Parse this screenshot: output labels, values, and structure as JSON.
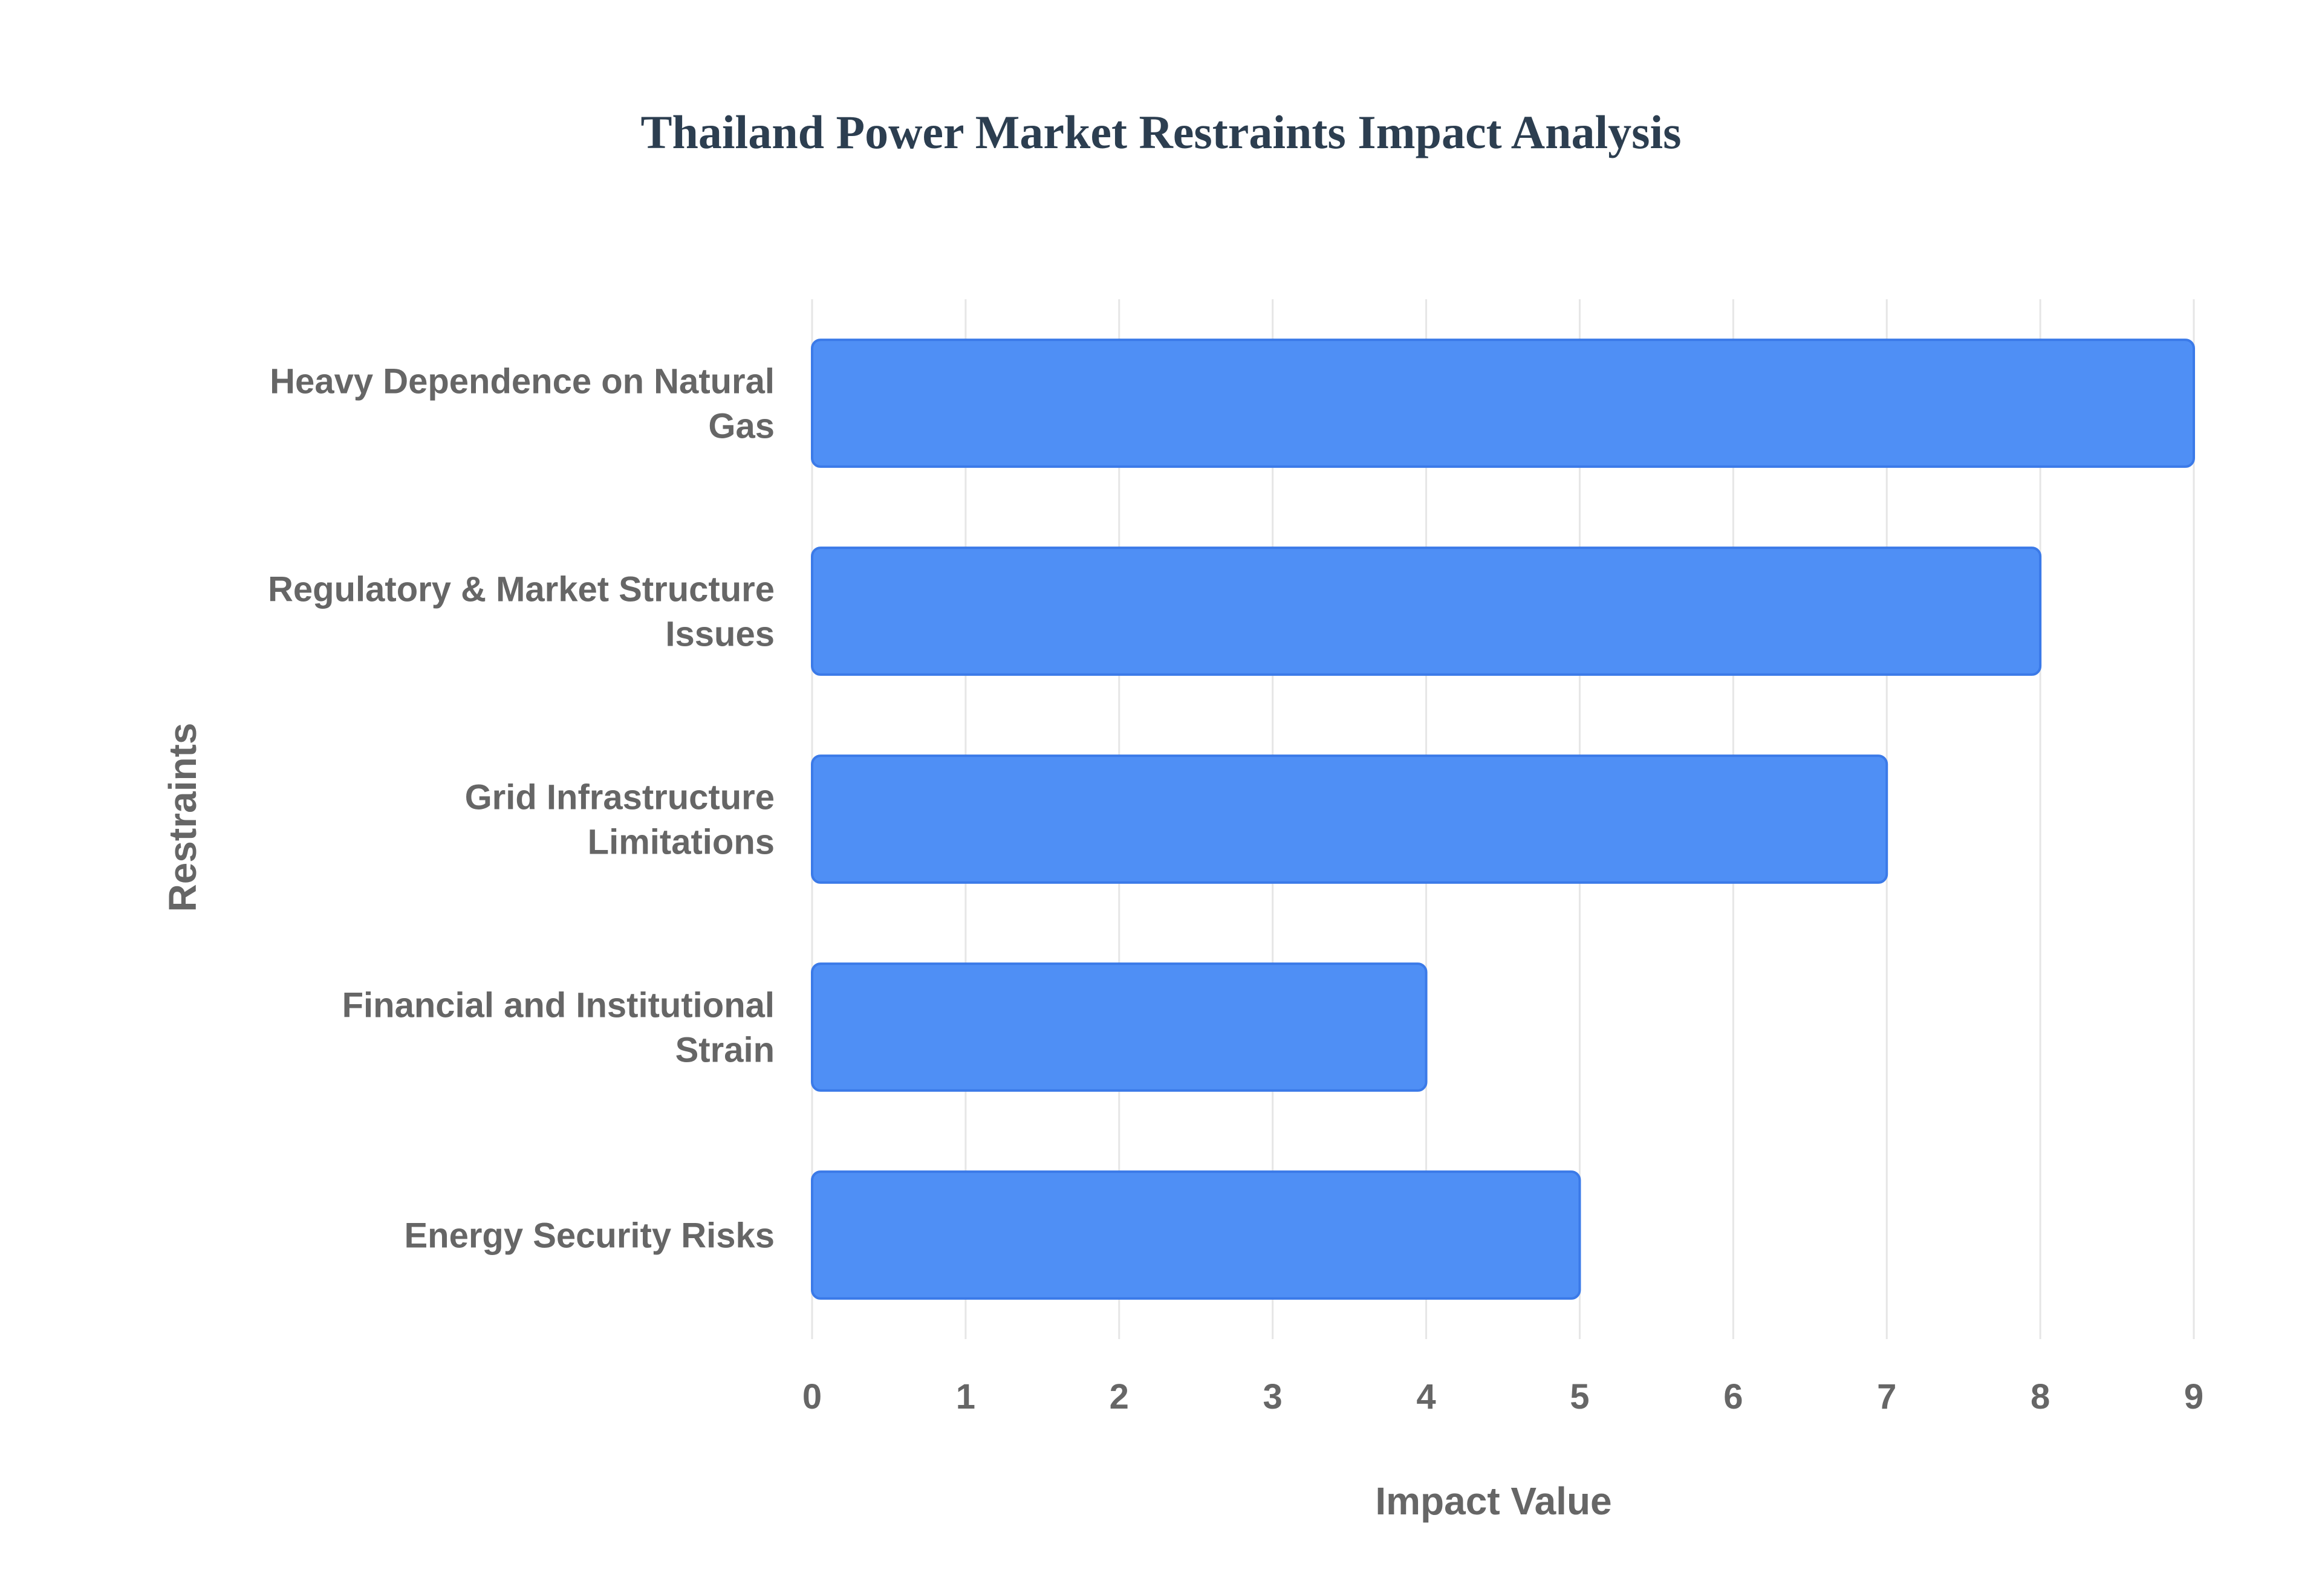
{
  "chart_data": {
    "type": "bar",
    "orientation": "horizontal",
    "title": "Thailand Power Market Restraints Impact Analysis",
    "xlabel": "Impact Value",
    "ylabel": "Restraints",
    "categories": [
      [
        "Heavy Dependence on Natural",
        "Gas"
      ],
      [
        "Regulatory & Market Structure",
        "Issues"
      ],
      [
        "Grid Infrastructure",
        "Limitations"
      ],
      [
        "Financial and Institutional",
        "Strain"
      ],
      [
        "Energy Security Risks"
      ]
    ],
    "values": [
      9,
      8,
      7,
      4,
      5
    ],
    "xlim": [
      0,
      9
    ],
    "xticks": [
      "0",
      "1",
      "2",
      "3",
      "4",
      "5",
      "6",
      "7",
      "8",
      "9"
    ],
    "grid": true,
    "legend": "none"
  },
  "colors": {
    "bar_fill": "#4f8ff5",
    "bar_stroke": "#3b7ae8",
    "title": "#2c3e50",
    "axis_text": "#666666",
    "grid": "#e6e6e6"
  }
}
